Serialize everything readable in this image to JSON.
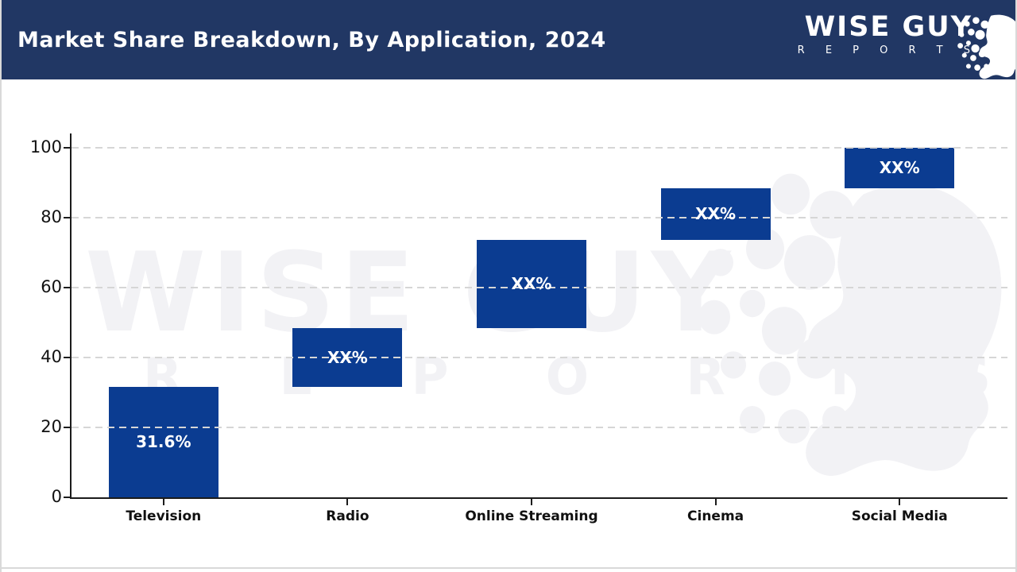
{
  "header": {
    "title": "Market Share Breakdown, By Application, 2024",
    "logo": {
      "name_line": "WISE GUY",
      "sub_line": "R E P O R T S"
    }
  },
  "watermark": {
    "name_line": "WISE GUY",
    "sub_line": "R E P O R T S"
  },
  "chart_data": {
    "type": "bar",
    "subtype": "waterfall",
    "title": "Market Share Breakdown, By Application, 2024",
    "categories": [
      "Television",
      "Radio",
      "Online Streaming",
      "Cinema",
      "Social Media"
    ],
    "segments": [
      {
        "category": "Television",
        "start": 0,
        "end": 31.6,
        "value_label": "31.6%"
      },
      {
        "category": "Radio",
        "start": 31.6,
        "end": 48.4,
        "value_label": "XX%"
      },
      {
        "category": "Online Streaming",
        "start": 48.4,
        "end": 73.7,
        "value_label": "XX%"
      },
      {
        "category": "Cinema",
        "start": 73.7,
        "end": 88.5,
        "value_label": "XX%"
      },
      {
        "category": "Social Media",
        "start": 88.5,
        "end": 100,
        "value_label": "XX%"
      }
    ],
    "ylim": [
      0,
      100
    ],
    "y_ticks": [
      0,
      20,
      40,
      60,
      80,
      100
    ],
    "grid": "horizontal-dashed-over-bars",
    "legend": "none",
    "colors": {
      "bar": "#0b3c91",
      "bar_label": "#ffffff",
      "header_background": "#213764",
      "gridline": "#d6d6d6",
      "axis": "#1b1b1b",
      "tick_text": "#111111",
      "watermark": "#f2f2f5"
    }
  }
}
